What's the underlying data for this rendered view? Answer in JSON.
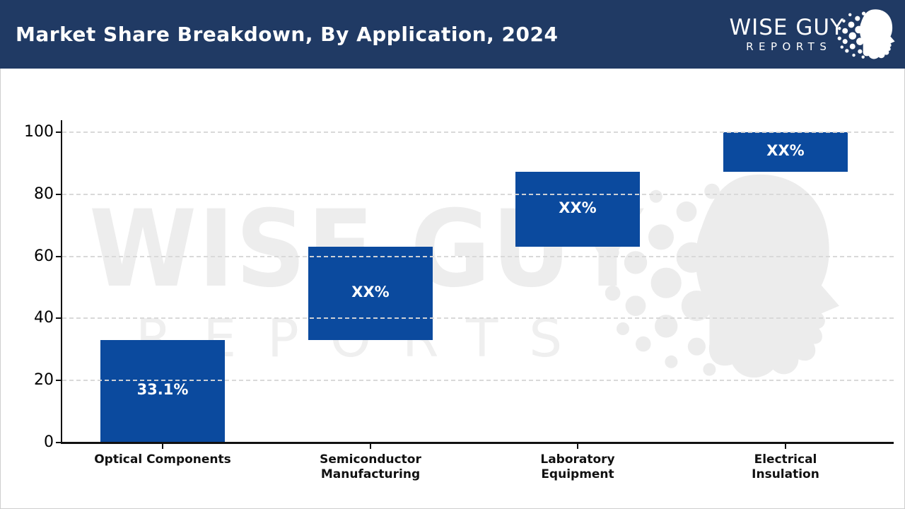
{
  "header": {
    "title": "Market Share Breakdown, By Application, 2024",
    "bg_color": "#203a64",
    "logo": {
      "primary": "WISE GUY",
      "secondary": "REPORTS"
    }
  },
  "watermark": {
    "primary": "WISE GUY",
    "secondary": "REPORTS"
  },
  "chart_data": {
    "type": "bar",
    "subtype": "floating-waterfall",
    "title": "Market Share Breakdown, By Application, 2024",
    "categories": [
      "Optical Components",
      "Semiconductor Manufacturing",
      "Laboratory Equipment",
      "Electrical Insulation"
    ],
    "category_lines": [
      [
        "Optical Components"
      ],
      [
        "Semiconductor",
        "Manufacturing"
      ],
      [
        "Laboratory",
        "Equipment"
      ],
      [
        "Electrical",
        "Insulation"
      ]
    ],
    "segments": [
      {
        "category": "Optical Components",
        "start": 0,
        "end": 33.1,
        "label": "33.1%"
      },
      {
        "category": "Semiconductor Manufacturing",
        "start": 33.1,
        "end": 63.2,
        "label": "XX%"
      },
      {
        "category": "Laboratory Equipment",
        "start": 63.2,
        "end": 87.2,
        "label": "XX%"
      },
      {
        "category": "Electrical Insulation",
        "start": 87.2,
        "end": 99.9,
        "label": "XX%"
      }
    ],
    "values": [
      33.1,
      30.1,
      24.0,
      12.7
    ],
    "yticks": [
      0,
      20,
      40,
      60,
      80,
      100
    ],
    "ylim": [
      0,
      104
    ],
    "xlabel": "",
    "ylabel": "",
    "grid": {
      "axis": "y",
      "style": "dashed",
      "color": "#d8d8d8"
    },
    "legend": "none",
    "colors": {
      "bar": "#0b4a9e",
      "bar_label": "#ffffff",
      "axis": "#111111",
      "header_bg": "#203a64",
      "watermark": "#ededed"
    }
  }
}
